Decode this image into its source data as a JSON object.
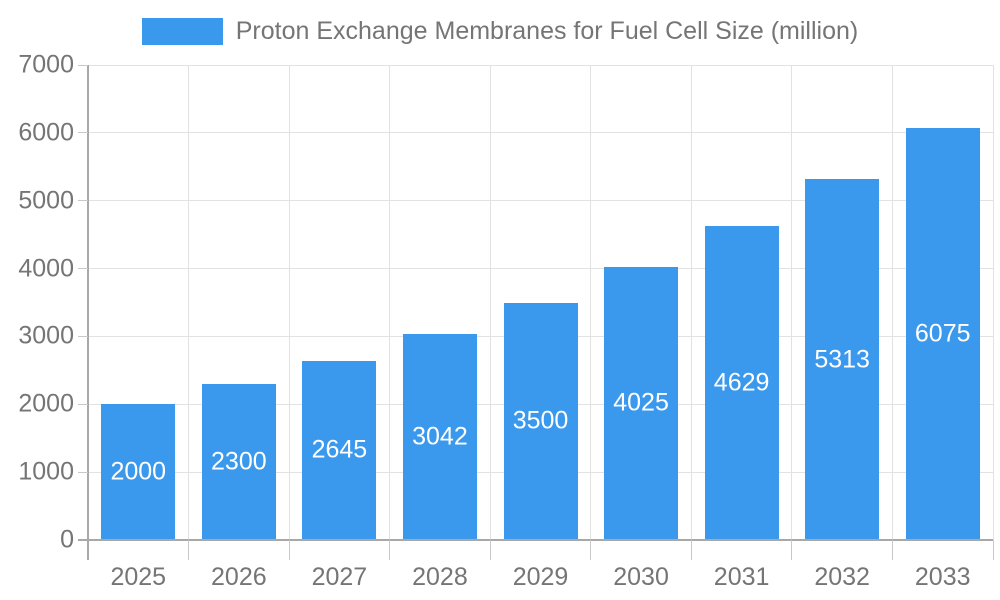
{
  "chart_data": {
    "type": "bar",
    "title": "Proton Exchange Membranes for Fuel Cell Size (million)",
    "legend": {
      "label": "Proton Exchange Membranes for Fuel Cell Size (million)",
      "position": "top-center"
    },
    "categories": [
      "2025",
      "2026",
      "2027",
      "2028",
      "2029",
      "2030",
      "2031",
      "2032",
      "2033"
    ],
    "values": [
      2000,
      2300,
      2645,
      3042,
      3500,
      4025,
      4629,
      5313,
      6075
    ],
    "value_labels": [
      "2000",
      "2300",
      "2645",
      "3042",
      "3500",
      "4025",
      "4629",
      "5313",
      "6075"
    ],
    "value_label_position": "inside-center",
    "xlabel": "",
    "ylabel": "",
    "ylim": [
      0,
      7000
    ],
    "ytick_labels": [
      "0",
      "1000",
      "2000",
      "3000",
      "4000",
      "5000",
      "6000",
      "7000"
    ],
    "grid": "horizontal and vertical light gridlines, ticks outside axes",
    "colors": {
      "bar": "#3B99ED",
      "value_label": "#FFFFFF",
      "axis_text": "#757575",
      "legend_text": "#757575",
      "grid_line": "#E2E2E2",
      "tick_line": "#C9C9C9",
      "axis_line": "#A8A8A8",
      "background": "#FFFFFF"
    }
  }
}
